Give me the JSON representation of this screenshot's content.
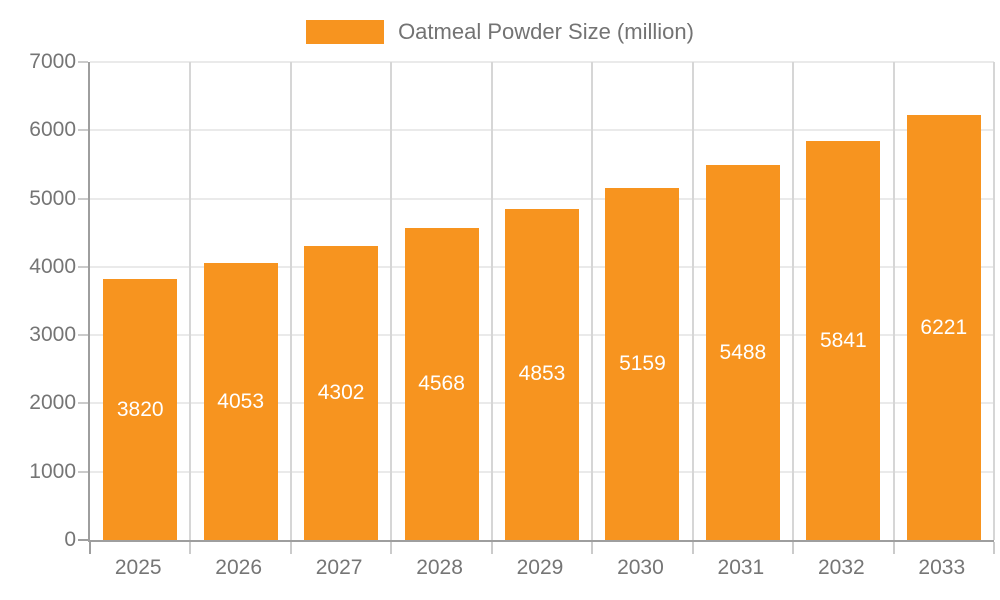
{
  "legend": {
    "label": "Oatmeal Powder Size (million)"
  },
  "chart_data": {
    "type": "bar",
    "title": "Oatmeal Powder Size (million)",
    "series_name": "Oatmeal Powder Size (million)",
    "categories": [
      "2025",
      "2026",
      "2027",
      "2028",
      "2029",
      "2030",
      "2031",
      "2032",
      "2033"
    ],
    "values": [
      3820,
      4053,
      4302,
      4568,
      4853,
      5159,
      5488,
      5841,
      6221
    ],
    "bar_value_labels": [
      "3820",
      "4053",
      "4302",
      "4568",
      "4853",
      "5159",
      "5488",
      "5841",
      "6221"
    ],
    "xlabel": "",
    "ylabel": "",
    "ylim": [
      0,
      7000
    ],
    "ytick_step": 1000,
    "yticks": [
      0,
      1000,
      2000,
      3000,
      4000,
      5000,
      6000,
      7000
    ],
    "grid": true,
    "legend_position": "top-center",
    "value_labels_inside_bars": true
  },
  "colors": {
    "bar": "#F7941F",
    "bar_label": "#FFFFFF",
    "legend_text": "#737373",
    "axis_text": "#757575",
    "axis_line": "#9E9E9E",
    "grid_horizontal": "#EAEAEA",
    "grid_vertical": "#D6D6D6",
    "tick": "#CBCBCB",
    "background": "#FFFFFF"
  }
}
